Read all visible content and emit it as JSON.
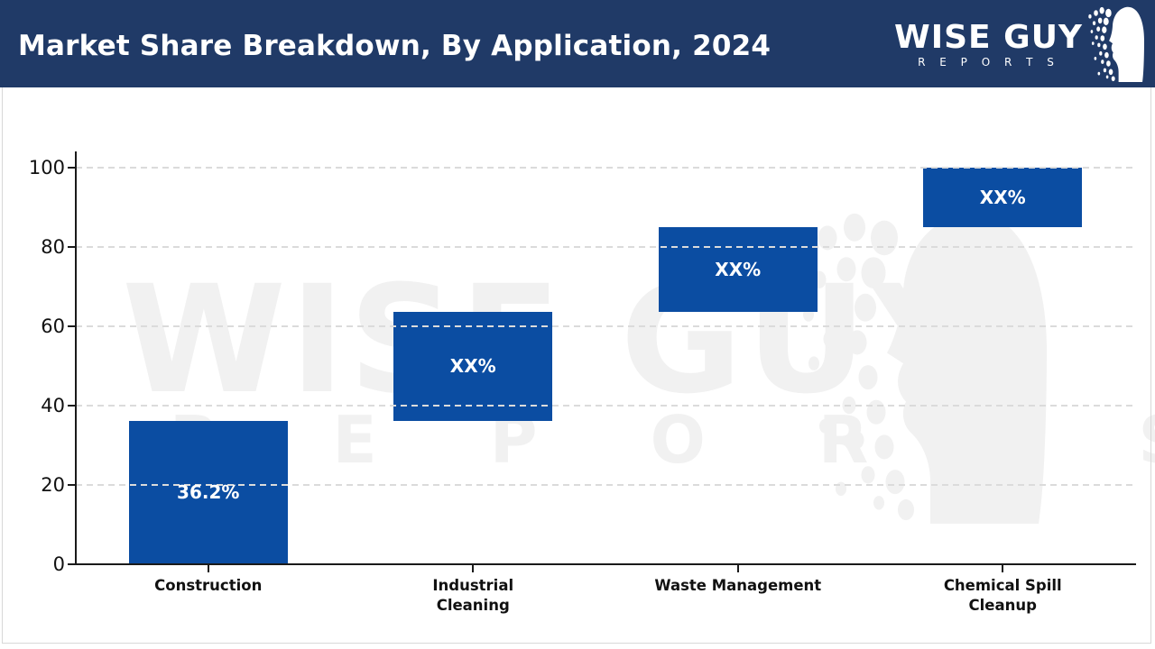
{
  "header": {
    "title": "Market Share Breakdown, By Application, 2024",
    "logo": {
      "name": "WISE GUY",
      "subtitle": "R E P O R T S"
    }
  },
  "watermark": {
    "name": "WISE GUY",
    "subtitle": "R E P O R T S"
  },
  "chart_data": {
    "type": "bar",
    "variant": "waterfall-floating-bars",
    "title": "Market Share Breakdown, By Application, 2024",
    "categories": [
      "Construction",
      "Industrial\nCleaning",
      "Waste Management",
      "Chemical Spill\nCleanup"
    ],
    "segments": [
      {
        "category": "Construction",
        "start": 0,
        "end": 36.2,
        "label": "36.2%"
      },
      {
        "category": "Industrial Cleaning",
        "start": 36.2,
        "end": 63.6,
        "label": "XX%"
      },
      {
        "category": "Waste Management",
        "start": 63.6,
        "end": 85,
        "label": "XX%"
      },
      {
        "category": "Chemical Spill Cleanup",
        "start": 85,
        "end": 100,
        "label": "XX%"
      }
    ],
    "y_ticks": [
      0,
      20,
      40,
      60,
      80,
      100
    ],
    "ylim": [
      0,
      104
    ],
    "xlabel": "",
    "ylabel": "",
    "grid": {
      "axis": "y",
      "style": "dashed",
      "drawn_over_bars": true
    },
    "legend": "none"
  },
  "colors": {
    "header_bg": "#203A67",
    "bar": "#0B4DA2",
    "grid": "#DBDBDB",
    "axis": "#1A1A1A",
    "text": "#111111",
    "bar_label": "#FFFFFF",
    "watermark": "#F1F1F1",
    "card_border": "#D8D8D8"
  }
}
